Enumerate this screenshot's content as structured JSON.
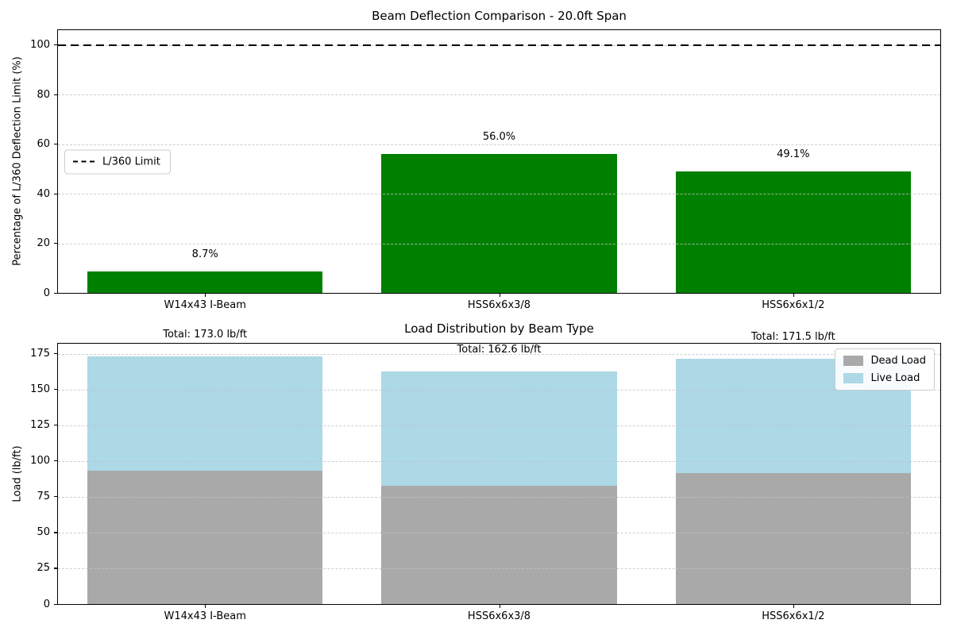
{
  "chart_data": [
    {
      "type": "bar",
      "title": "Beam Deflection Comparison - 20.0ft Span",
      "ylabel": "Percentage of L/360 Deflection Limit (%)",
      "xlabel": "",
      "categories": [
        "W14x43 I-Beam",
        "HSS6x6x3/8",
        "HSS6x6x1/2"
      ],
      "values": [
        8.7,
        56.0,
        49.1
      ],
      "bar_labels": [
        "8.7%",
        "56.0%",
        "49.1%"
      ],
      "bar_color": "#008000",
      "yticks": [
        0,
        20,
        40,
        60,
        80,
        100
      ],
      "ylim": [
        0,
        106
      ],
      "grid": true,
      "reference_line": {
        "value": 100,
        "label": "L/360 Limit",
        "color": "#000000",
        "style": "dashed"
      },
      "legend": {
        "position": "center-left",
        "entries": [
          "L/360 Limit"
        ]
      }
    },
    {
      "type": "stacked-bar",
      "title": "Load Distribution by Beam Type",
      "ylabel": "Load (lb/ft)",
      "xlabel": "",
      "categories": [
        "W14x43 I-Beam",
        "HSS6x6x3/8",
        "HSS6x6x1/2"
      ],
      "series": [
        {
          "name": "Dead Load",
          "color": "#a9a9a9",
          "values": [
            93.0,
            82.6,
            91.5
          ]
        },
        {
          "name": "Live Load",
          "color": "#add8e6",
          "values": [
            80.0,
            80.0,
            80.0
          ]
        }
      ],
      "totals": [
        173.0,
        162.6,
        171.5
      ],
      "total_labels": [
        "Total: 173.0 lb/ft",
        "Total: 162.6 lb/ft",
        "Total: 171.5 lb/ft"
      ],
      "yticks": [
        0,
        25,
        50,
        75,
        100,
        125,
        150,
        175
      ],
      "ylim": [
        0,
        182
      ],
      "grid": true,
      "legend": {
        "position": "top-right",
        "entries": [
          "Dead Load",
          "Live Load"
        ]
      }
    }
  ]
}
